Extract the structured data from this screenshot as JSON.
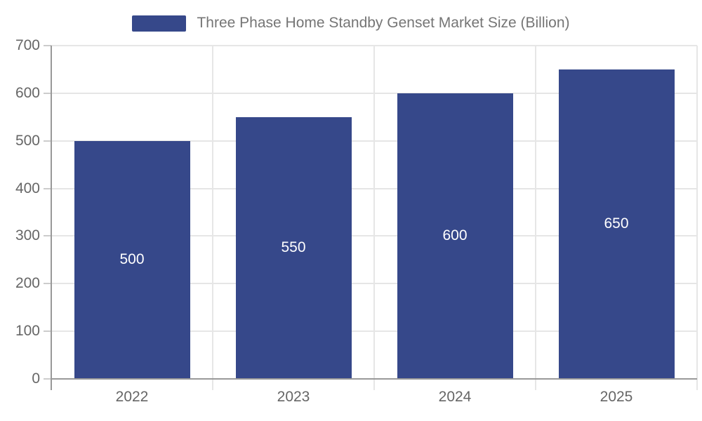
{
  "chart_data": {
    "type": "bar",
    "title": "Three Phase Home Standby Genset Market Size (Billion)",
    "categories": [
      "2022",
      "2023",
      "2024",
      "2025"
    ],
    "values": [
      500,
      550,
      600,
      650
    ],
    "data_labels": [
      "500",
      "550",
      "600",
      "650"
    ],
    "xlabel": "",
    "ylabel": "",
    "ylim": [
      0,
      700
    ],
    "yticks": [
      0,
      100,
      200,
      300,
      400,
      500,
      600,
      700
    ],
    "grid": true,
    "legend_position": "top-center",
    "colors": {
      "bar_fill": "#36488A",
      "data_label_text": "#ffffff",
      "gridline": "#e6e6e6",
      "axis_line": "#999999",
      "tick_mark": "#cccccc",
      "axis_text": "#666666",
      "legend_text": "#757575",
      "background": "#ffffff"
    }
  }
}
